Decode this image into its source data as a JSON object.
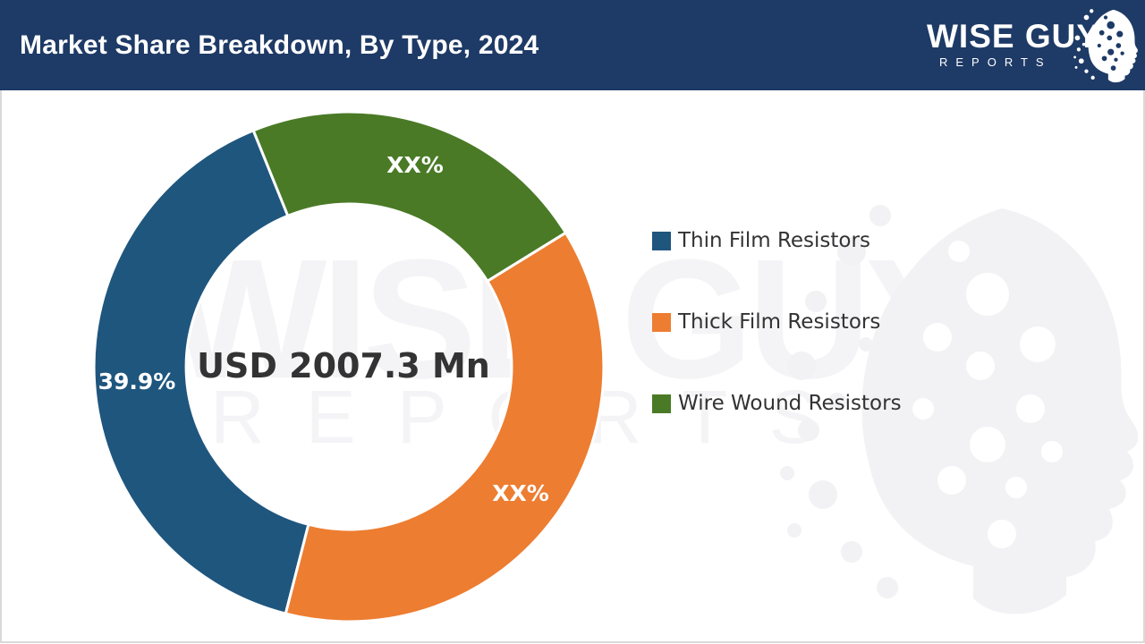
{
  "header": {
    "title": "Market Share Breakdown, By Type, 2024",
    "bg_color": "#1e3a66",
    "logo": {
      "wordmark": "WISE GUY",
      "subtitle": "REPORTS"
    }
  },
  "watermark": {
    "wordmark": "WISE GUY",
    "subtitle": "REPORTS"
  },
  "chart_data": {
    "type": "pie",
    "subtype": "donut",
    "title": "Market Share Breakdown, By Type, 2024",
    "center_label": "USD 2007.3 Mn",
    "start_angle_deg": 112,
    "direction": "counterclockwise",
    "legend_position": "right",
    "hole_transparent": true,
    "segments": [
      {
        "label": "Thin Film Resistors",
        "display_label": "39.9%",
        "value_pct": 39.9,
        "color": "#1f567e"
      },
      {
        "label": "Thick Film Resistors",
        "display_label": "XX%",
        "value_pct": 37.8,
        "color": "#ed7d31"
      },
      {
        "label": "Wire Wound Resistors",
        "display_label": "XX%",
        "value_pct": 22.3,
        "color": "#4a7a26"
      }
    ]
  }
}
